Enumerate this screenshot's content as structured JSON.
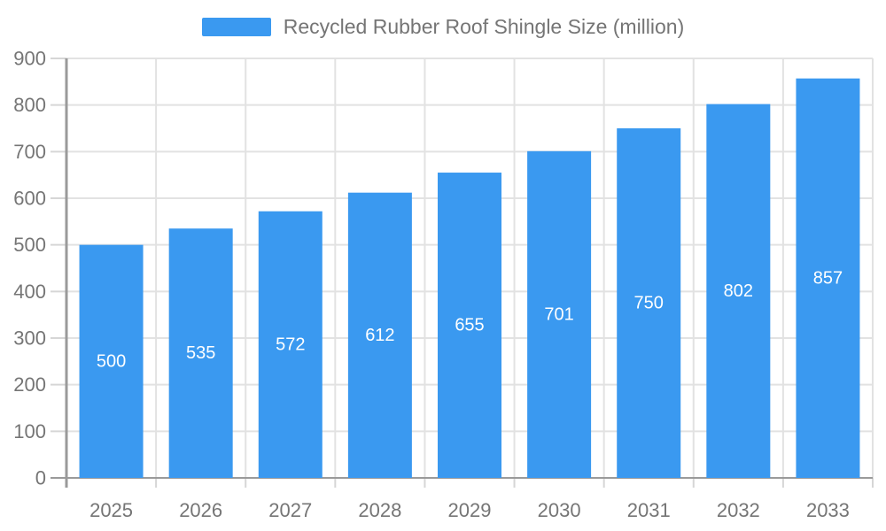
{
  "legend": {
    "label": "Recycled Rubber Roof Shingle Size (million)"
  },
  "chart_data": {
    "type": "bar",
    "title": "Recycled Rubber Roof Shingle Size (million)",
    "categories": [
      "2025",
      "2026",
      "2027",
      "2028",
      "2029",
      "2030",
      "2031",
      "2032",
      "2033"
    ],
    "values": [
      500,
      535,
      572,
      612,
      655,
      701,
      750,
      802,
      857
    ],
    "xlabel": "",
    "ylabel": "",
    "ylim": [
      0,
      900
    ],
    "ytick_step": 100,
    "grid": true,
    "legend_position": "top-center",
    "bar_value_labels": "inside-center",
    "colors": {
      "bar": "#3A99F0",
      "grid": "#E2E2E2",
      "tick": "#D6D6D6",
      "axis": "#9A9A9A",
      "axis_text": "#757575",
      "bar_label_text": "#FFFFFF",
      "background": "#FFFFFF"
    }
  }
}
